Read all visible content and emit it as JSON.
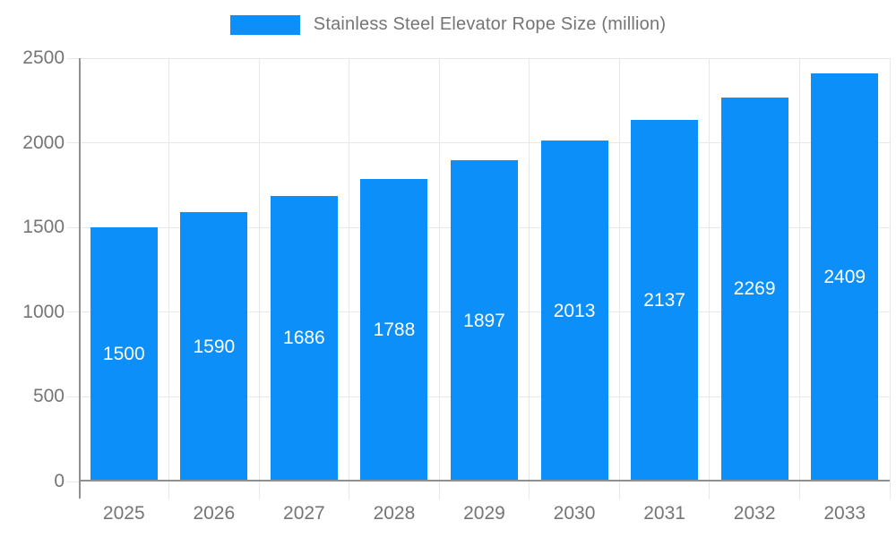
{
  "chart_data": {
    "type": "bar",
    "title": "Stainless Steel Elevator Rope Size (million)",
    "categories": [
      "2025",
      "2026",
      "2027",
      "2028",
      "2029",
      "2030",
      "2031",
      "2032",
      "2033"
    ],
    "values": [
      1500,
      1590,
      1686,
      1788,
      1897,
      2013,
      2137,
      2269,
      2409
    ],
    "xlabel": "",
    "ylabel": "",
    "ylim": [
      0,
      2500
    ],
    "yticks": [
      0,
      500,
      1000,
      1500,
      2000,
      2500
    ],
    "grid": true,
    "legend_position": "top",
    "bar_value_labels_inside": true,
    "colors": {
      "bar": "#0C8FF9",
      "grid": "#E8E8E8",
      "axis": "#909090",
      "tick_text": "#757575",
      "bar_label_text": "#FFFFFF",
      "background": "#FFFFFF"
    }
  }
}
